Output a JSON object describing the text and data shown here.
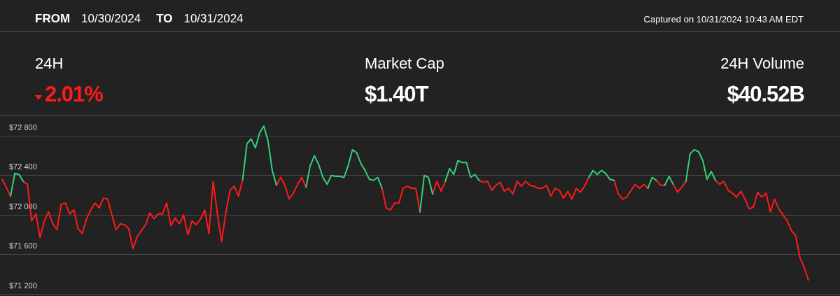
{
  "chart_data": {
    "type": "line",
    "annotations": [
      "FROM",
      "10/30/2024",
      "TO",
      "10/31/2024",
      "Captured on 10/31/2024 10:43 AM EDT",
      "24H",
      "2.01%",
      "Market Cap",
      "$1.40T",
      "24H Volume",
      "$40.52B"
    ],
    "categories": [
      null,
      null,
      null,
      null,
      null,
      null,
      null,
      null,
      null,
      null,
      null,
      null,
      null,
      null,
      null,
      null,
      null,
      null,
      null,
      null,
      null,
      null,
      null,
      null,
      null,
      null,
      null,
      null,
      null,
      null,
      null,
      null,
      null,
      null,
      null,
      null,
      null,
      null,
      null,
      null,
      null,
      null,
      null,
      null,
      null,
      null,
      null,
      null,
      null,
      null,
      null,
      null,
      null,
      null,
      null,
      null,
      null,
      null,
      null,
      null,
      null,
      null,
      null,
      null,
      null,
      null,
      null,
      null,
      null,
      null,
      null,
      null,
      null,
      null,
      null,
      null,
      null,
      null,
      null,
      null,
      null,
      null,
      null,
      null,
      null,
      null,
      null,
      null,
      null,
      null,
      null,
      null,
      null,
      null,
      null,
      null,
      null,
      null,
      null,
      null,
      null,
      null,
      null,
      null,
      null,
      null,
      null,
      null,
      null,
      null,
      null,
      null,
      null,
      null,
      null,
      null,
      null,
      null,
      null,
      null,
      null,
      null,
      null,
      null,
      null,
      null,
      null,
      null,
      null,
      null,
      null,
      null,
      null,
      null,
      null,
      null,
      null,
      null,
      null,
      null,
      null,
      null,
      null,
      null,
      null,
      null,
      null,
      null,
      null,
      null,
      null,
      null,
      null,
      null,
      null,
      null,
      null,
      null,
      null,
      null,
      null,
      null,
      null,
      null,
      null,
      null,
      null,
      null,
      null,
      null,
      null,
      null,
      null,
      null,
      null,
      null,
      null,
      null,
      null,
      null,
      null,
      null,
      null,
      null,
      null,
      null,
      null,
      null,
      null,
      null,
      null,
      null,
      null,
      null,
      null,
      null,
      null,
      null,
      null
    ],
    "series": [
      {
        "color": "#ff1a1a",
        "values": [
          72360,
          72280,
          72190,
          null,
          null,
          72340,
          72310,
          71940,
          72010,
          71770,
          71940,
          72030,
          71910,
          71850,
          72110,
          72120,
          72010,
          72050,
          71860,
          71810,
          71960,
          72050,
          72120,
          72070,
          72170,
          72160,
          72000,
          71850,
          71910,
          71900,
          71860,
          71660,
          71780,
          71840,
          71900,
          72020,
          71960,
          72010,
          72010,
          72120,
          71890,
          71970,
          71910,
          72000,
          71800,
          71940,
          71900,
          71960,
          72050,
          71810,
          72340,
          72010,
          71730,
          72020,
          72250,
          72290,
          72190,
          72360,
          null,
          null,
          null,
          null,
          null,
          null,
          null,
          72300,
          72380,
          72300,
          72160,
          72220,
          72310,
          72380,
          72280,
          null,
          null,
          null,
          null,
          null,
          null,
          null,
          null,
          null,
          null,
          null,
          null,
          null,
          null,
          null,
          null,
          null,
          72270,
          72070,
          72050,
          72120,
          72120,
          72270,
          72290,
          72270,
          72270,
          72030,
          null,
          null,
          72210,
          72340,
          72240,
          72340,
          null,
          null,
          null,
          null,
          null,
          null,
          null,
          72350,
          72330,
          72340,
          72250,
          72300,
          72330,
          72240,
          72270,
          72210,
          72340,
          72290,
          72340,
          72300,
          72290,
          72270,
          72270,
          72300,
          72190,
          72270,
          72250,
          72170,
          72240,
          72160,
          72270,
          72230,
          72290,
          72380,
          null,
          null,
          null,
          null,
          null,
          72350,
          72210,
          72160,
          72180,
          72250,
          72310,
          72270,
          72310,
          72270,
          null,
          72350,
          72300,
          72300,
          null,
          72310,
          72230,
          72280,
          72340,
          null,
          null,
          null,
          null,
          null,
          null,
          72350,
          72310,
          72340,
          72250,
          72220,
          72180,
          72240,
          72160,
          72060,
          72080,
          72230,
          72180,
          72220,
          72030,
          72160,
          72060,
          72000,
          71940,
          71840,
          71790,
          71570,
          71470,
          71340,
          null,
          null,
          null,
          null,
          null,
          null,
          null
        ]
      },
      {
        "color": "#33d17a",
        "values": [
          null,
          null,
          72190,
          72420,
          72410,
          72340,
          null,
          null,
          null,
          null,
          null,
          null,
          null,
          null,
          null,
          null,
          null,
          null,
          null,
          null,
          null,
          null,
          null,
          null,
          null,
          null,
          null,
          null,
          null,
          null,
          null,
          null,
          null,
          null,
          null,
          null,
          null,
          null,
          null,
          null,
          null,
          null,
          null,
          null,
          null,
          null,
          null,
          null,
          null,
          null,
          null,
          null,
          null,
          null,
          null,
          null,
          null,
          72360,
          72720,
          72770,
          72680,
          72830,
          72900,
          72750,
          72450,
          72300,
          null,
          null,
          null,
          null,
          null,
          null,
          72280,
          72500,
          72600,
          72510,
          72380,
          72310,
          72400,
          72390,
          72390,
          72380,
          72500,
          72660,
          72630,
          72520,
          72450,
          72360,
          72350,
          72380,
          72270,
          null,
          null,
          null,
          null,
          null,
          null,
          null,
          null,
          72030,
          72400,
          72380,
          72210,
          null,
          null,
          72340,
          72470,
          72410,
          72550,
          72530,
          72530,
          72380,
          72410,
          72350,
          null,
          null,
          null,
          null,
          null,
          null,
          null,
          null,
          null,
          null,
          null,
          null,
          null,
          null,
          null,
          null,
          null,
          null,
          null,
          null,
          null,
          null,
          null,
          null,
          null,
          72380,
          72450,
          72410,
          72450,
          72420,
          72360,
          72350,
          null,
          null,
          null,
          null,
          null,
          null,
          null,
          72270,
          72380,
          72350,
          null,
          72300,
          72390,
          72310,
          null,
          null,
          72340,
          72620,
          72660,
          72640,
          72550,
          72360,
          72440,
          72350,
          null,
          null,
          null,
          null,
          null,
          null,
          null,
          null,
          null,
          null,
          null,
          null,
          null,
          null,
          null,
          null,
          null,
          null,
          null,
          null,
          null,
          null,
          null,
          null,
          null,
          null,
          null,
          null,
          null
        ]
      }
    ],
    "ylim": [
      71200,
      73000
    ],
    "yticks": [
      {
        "value": 71200,
        "label": "$71 200"
      },
      {
        "value": 71600,
        "label": "$71 600"
      },
      {
        "value": 72000,
        "label": "$72 000"
      },
      {
        "value": 72400,
        "label": "$72 400"
      },
      {
        "value": 72800,
        "label": "$72 800"
      }
    ],
    "grid": "y",
    "tick_labels": "y",
    "line_style": "solid"
  }
}
